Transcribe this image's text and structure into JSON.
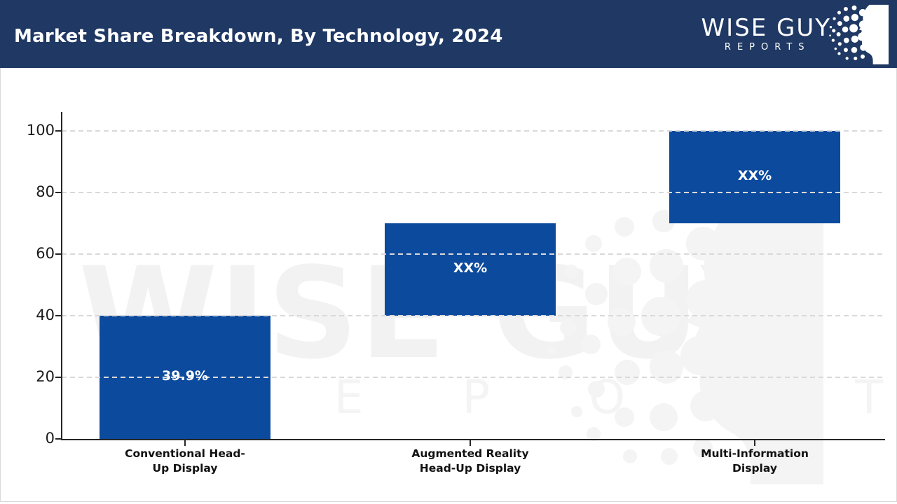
{
  "header": {
    "title": "Market Share Breakdown, By Technology, 2024",
    "bg_color": "#1f3864",
    "logo": {
      "name": "WISE GUY",
      "subtitle": "REPORTS",
      "icon": "face-dots-icon"
    }
  },
  "watermark": {
    "line1": "WISE GUY",
    "line2": "R E P O R T S",
    "icon": "face-dots-icon"
  },
  "chart_data": {
    "type": "bar",
    "subtype": "floating-segment-bar",
    "title": "Market Share Breakdown, By Technology, 2024",
    "categories": [
      "Conventional Head-Up Display",
      "Augmented Reality Head-Up Display",
      "Multi-Information Display"
    ],
    "category_label_lines": [
      [
        "Conventional Head-",
        "Up Display"
      ],
      [
        "Augmented Reality",
        "Head-Up Display"
      ],
      [
        "Multi-Information",
        "Display"
      ]
    ],
    "bars": [
      {
        "category": "Conventional Head-Up Display",
        "label": "39.9%",
        "start": 0,
        "end": 40
      },
      {
        "category": "Augmented Reality Head-Up Display",
        "label": "XX%",
        "start": 40,
        "end": 70
      },
      {
        "category": "Multi-Information Display",
        "label": "XX%",
        "start": 70,
        "end": 100
      }
    ],
    "y_ticks": [
      0,
      20,
      40,
      60,
      80,
      100
    ],
    "ylim": [
      0,
      100
    ],
    "xlabel": "",
    "ylabel": "",
    "grid": "horizontal-dashed",
    "legend": "none",
    "bar_color": "#0c4a9e",
    "bar_label_color": "#ffffff",
    "grid_color": "#d9d9d9",
    "axis_color": "#262626"
  }
}
